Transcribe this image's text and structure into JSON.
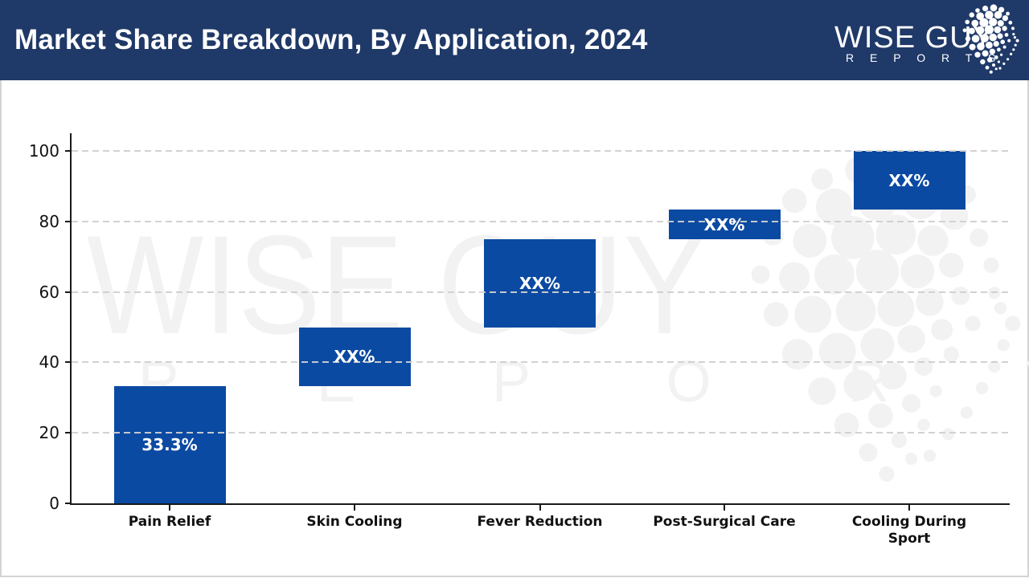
{
  "header": {
    "title": "Market Share Breakdown, By Application, 2024",
    "logo": {
      "wordmark": "WISE GUY",
      "subtext": "R E P O R T S"
    }
  },
  "watermark": {
    "line1": "WISE GUY",
    "line2": "R E P O R T S"
  },
  "chart_data": {
    "type": "bar",
    "subtype": "floating-waterfall",
    "title": "Market Share Breakdown, By Application, 2024",
    "categories": [
      "Pain Relief",
      "Skin Cooling",
      "Fever Reduction",
      "Post-Surgical Care",
      "Cooling During\nSport"
    ],
    "bars": [
      {
        "category": "Pain Relief",
        "start": 0,
        "end": 33.3,
        "label": "33.3%"
      },
      {
        "category": "Skin Cooling",
        "start": 33.3,
        "end": 50,
        "label": "XX%"
      },
      {
        "category": "Fever Reduction",
        "start": 50,
        "end": 75,
        "label": "XX%"
      },
      {
        "category": "Post-Surgical Care",
        "start": 75,
        "end": 83.3,
        "label": "XX%"
      },
      {
        "category": "Cooling During\nSport",
        "start": 83.3,
        "end": 100,
        "label": "XX%"
      }
    ],
    "y_ticks": [
      0,
      20,
      40,
      60,
      80,
      100
    ],
    "ylim": [
      0,
      105
    ],
    "xlabel": "",
    "ylabel": "",
    "grid": true,
    "legend": null,
    "colors": {
      "bar": "#0b4aa2",
      "bar_label": "#ffffff",
      "gridline": "#cfcfcf",
      "axis": "#1a1a1a",
      "tick_label": "#111111",
      "header_bg": "#1f3968",
      "header_text": "#ffffff",
      "watermark": "#f2f2f2"
    }
  }
}
